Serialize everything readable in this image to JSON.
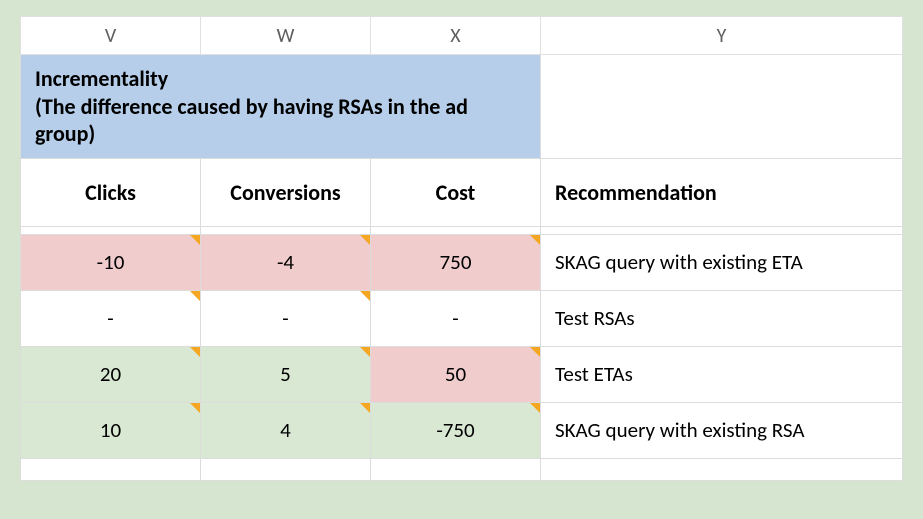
{
  "columns": {
    "v": "V",
    "w": "W",
    "x": "X",
    "y": "Y"
  },
  "title": "Incrementality\n(The difference caused by having RSAs in the ad group)",
  "headers": {
    "clicks": "Clicks",
    "conversions": "Conversions",
    "cost": "Cost",
    "recommendation": "Recommendation"
  },
  "rows": [
    {
      "clicks": "-10",
      "conversions": "-4",
      "cost": "750",
      "recommendation": "SKAG query with existing ETA",
      "bg": {
        "clicks": "red",
        "conversions": "red",
        "cost": "red"
      },
      "tri": {
        "clicks": true,
        "conversions": true,
        "cost": true
      }
    },
    {
      "clicks": "-",
      "conversions": "-",
      "cost": "-",
      "recommendation": "Test RSAs",
      "bg": {},
      "tri": {
        "clicks": true,
        "conversions": true
      }
    },
    {
      "clicks": "20",
      "conversions": "5",
      "cost": "50",
      "recommendation": "Test ETAs",
      "bg": {
        "clicks": "green",
        "conversions": "green",
        "cost": "red"
      },
      "tri": {
        "clicks": true,
        "conversions": true,
        "cost": true
      }
    },
    {
      "clicks": "10",
      "conversions": "4",
      "cost": "-750",
      "recommendation": "SKAG query with existing RSA",
      "bg": {
        "clicks": "green",
        "conversions": "green",
        "cost": "green"
      },
      "tri": {
        "clicks": true,
        "conversions": true,
        "cost": true
      }
    }
  ],
  "colors": {
    "page_bg": "#d5e5cf",
    "title_bg": "#b6cee9",
    "red_bg": "#f0cccc",
    "green_bg": "#d9e8d3",
    "border": "#dcdcdc",
    "tri": "#f5a623"
  }
}
